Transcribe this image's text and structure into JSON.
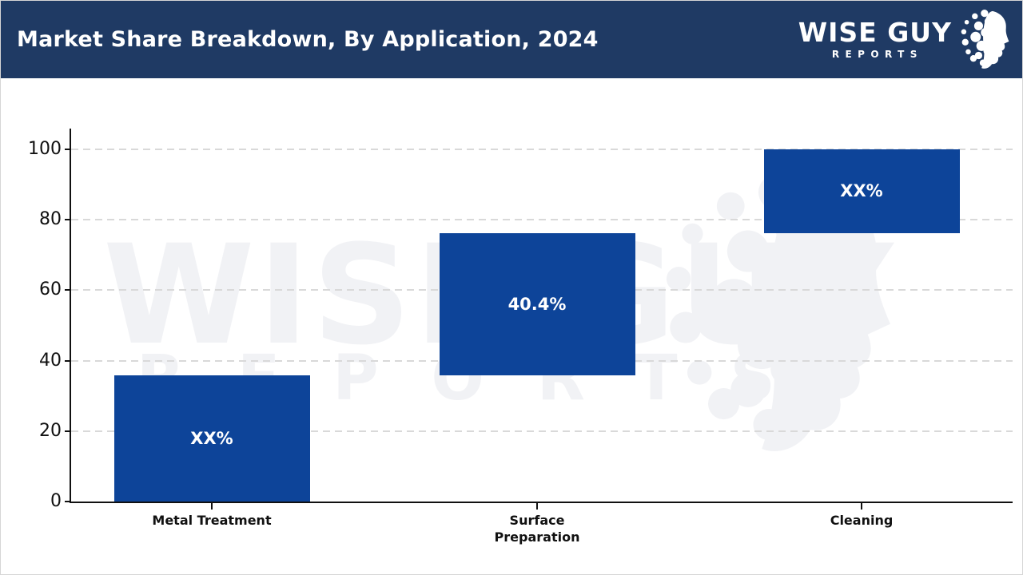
{
  "header": {
    "title": "Market Share Breakdown, By Application, 2024",
    "bg_color": "#1f3a64",
    "logo": {
      "line1": "WISE GUY",
      "line2": "REPORTS"
    }
  },
  "watermark": {
    "line1": "WISE GUY",
    "line2": "REPORTS"
  },
  "chart_data": {
    "type": "bar",
    "subtype": "waterfall-floating-bars",
    "title": "Market Share Breakdown, By Application, 2024",
    "categories": [
      "Metal Treatment",
      "Surface Preparation",
      "Cleaning"
    ],
    "category_lines": [
      [
        "Metal Treatment"
      ],
      [
        "Surface",
        "Preparation"
      ],
      [
        "Cleaning"
      ]
    ],
    "segments": [
      {
        "category": "Metal Treatment",
        "start": 0,
        "end": 35.8,
        "label": "XX%"
      },
      {
        "category": "Surface Preparation",
        "start": 35.8,
        "end": 76.2,
        "label": "40.4%"
      },
      {
        "category": "Cleaning",
        "start": 76.2,
        "end": 100,
        "label": "XX%"
      }
    ],
    "y_ticks": [
      0,
      20,
      40,
      60,
      80,
      100
    ],
    "ylim": [
      0,
      105.8
    ],
    "xlabel": "",
    "ylabel": "",
    "grid": "horizontal-dashed",
    "legend": "none",
    "bar_color": "#0d4499",
    "grid_color": "#d9d9d9",
    "axis_color": "#111111",
    "label_color": "#ffffff"
  }
}
